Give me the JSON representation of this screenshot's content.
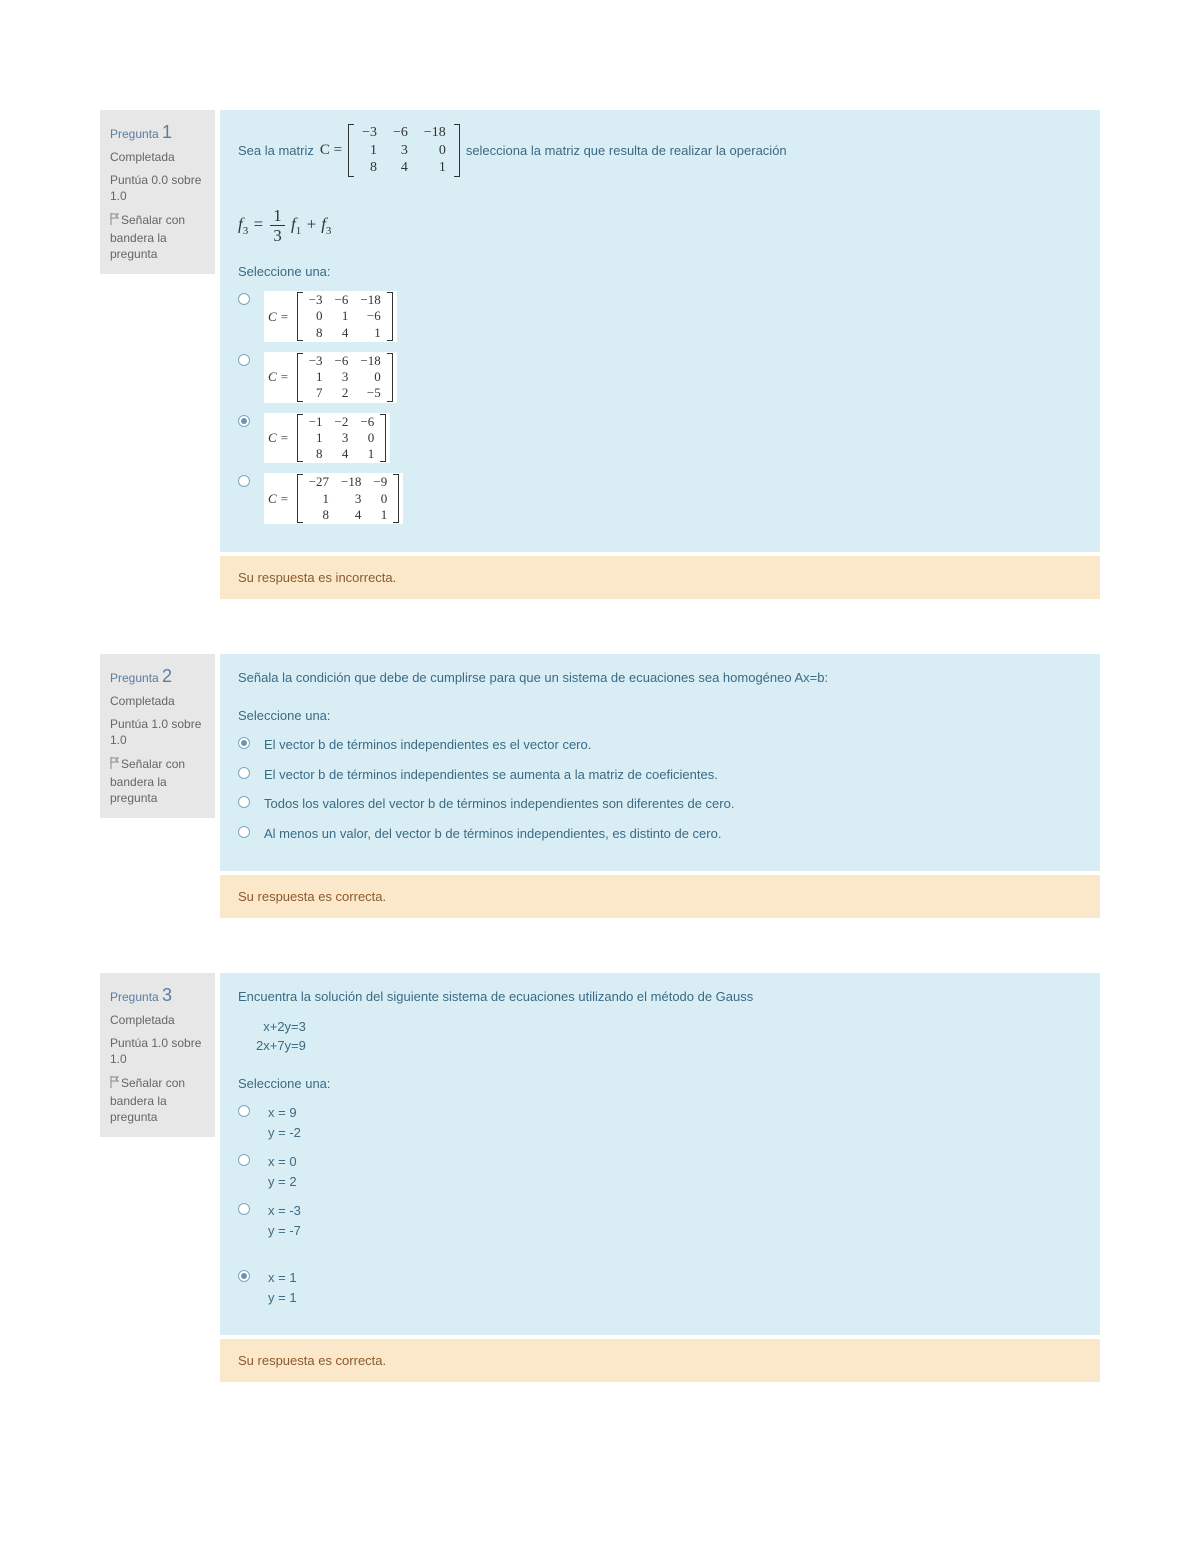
{
  "common": {
    "pregunta_label": "Pregunta",
    "status": "Completada",
    "flag_text": "Señalar con bandera la pregunta",
    "select_prompt": "Seleccione una:"
  },
  "q1": {
    "number": "1",
    "grade": "Puntúa 0.0 sobre 1.0",
    "stem_pre": "Sea la matriz",
    "c_eq": "C =",
    "matrix": [
      [
        "−3",
        "−6",
        "−18"
      ],
      [
        "1",
        "3",
        "0"
      ],
      [
        "8",
        "4",
        "1"
      ]
    ],
    "stem_post": "selecciona la matriz que resulta de realizar la operación",
    "row_op": {
      "lhs_var": "f",
      "lhs_sub": "3",
      "eq": "=",
      "num": "1",
      "den": "3",
      "r1_var": "f",
      "r1_sub": "1",
      "plus": "+",
      "r2_var": "f",
      "r2_sub": "3"
    },
    "options": [
      {
        "rows": [
          [
            "−3",
            "−6",
            "−18"
          ],
          [
            "0",
            "1",
            "−6"
          ],
          [
            "8",
            "4",
            "1"
          ]
        ],
        "selected": false
      },
      {
        "rows": [
          [
            "−3",
            "−6",
            "−18"
          ],
          [
            "1",
            "3",
            "0"
          ],
          [
            "7",
            "2",
            "−5"
          ]
        ],
        "selected": false
      },
      {
        "rows": [
          [
            "−1",
            "−2",
            "−6"
          ],
          [
            "1",
            "3",
            "0"
          ],
          [
            "8",
            "4",
            "1"
          ]
        ],
        "selected": true
      },
      {
        "rows": [
          [
            "−27",
            "−18",
            "−9"
          ],
          [
            "1",
            "3",
            "0"
          ],
          [
            "8",
            "4",
            "1"
          ]
        ],
        "selected": false
      }
    ],
    "feedback": "Su respuesta es incorrecta."
  },
  "q2": {
    "number": "2",
    "grade": "Puntúa 1.0 sobre 1.0",
    "stem": "Señala la condición que debe de cumplirse para que un sistema de ecuaciones sea homogéneo Ax=b:",
    "options": [
      {
        "text": "El vector b de términos independientes es el vector cero.",
        "selected": true
      },
      {
        "text": "El vector b de términos independientes se aumenta a la matriz de coeficientes.",
        "selected": false
      },
      {
        "text": "Todos los valores del vector b de términos independientes son diferentes de cero.",
        "selected": false
      },
      {
        "text": "Al menos un valor, del vector b de términos independientes, es distinto de cero.",
        "selected": false
      }
    ],
    "feedback": "Su respuesta es correcta."
  },
  "q3": {
    "number": "3",
    "grade": "Puntúa 1.0 sobre 1.0",
    "stem": "Encuentra la solución del siguiente sistema de ecuaciones utilizando el método de Gauss",
    "sys": [
      "  x+2y=3",
      "2x+7y=9"
    ],
    "options": [
      {
        "x": "x = 9",
        "y": "y = -2",
        "selected": false
      },
      {
        "x": "x = 0",
        "y": "y = 2",
        "selected": false
      },
      {
        "x": "x = -3",
        "y": "y = -7",
        "selected": false
      },
      {
        "x": "x = 1",
        "y": "y = 1",
        "selected": true
      }
    ],
    "feedback": "Su respuesta es correcta."
  },
  "style": {
    "formulation_bg": "#d9eef4",
    "feedback_bg": "#fbe8cb",
    "info_bg": "#e7e7e7",
    "accent": "#5b7da0"
  }
}
